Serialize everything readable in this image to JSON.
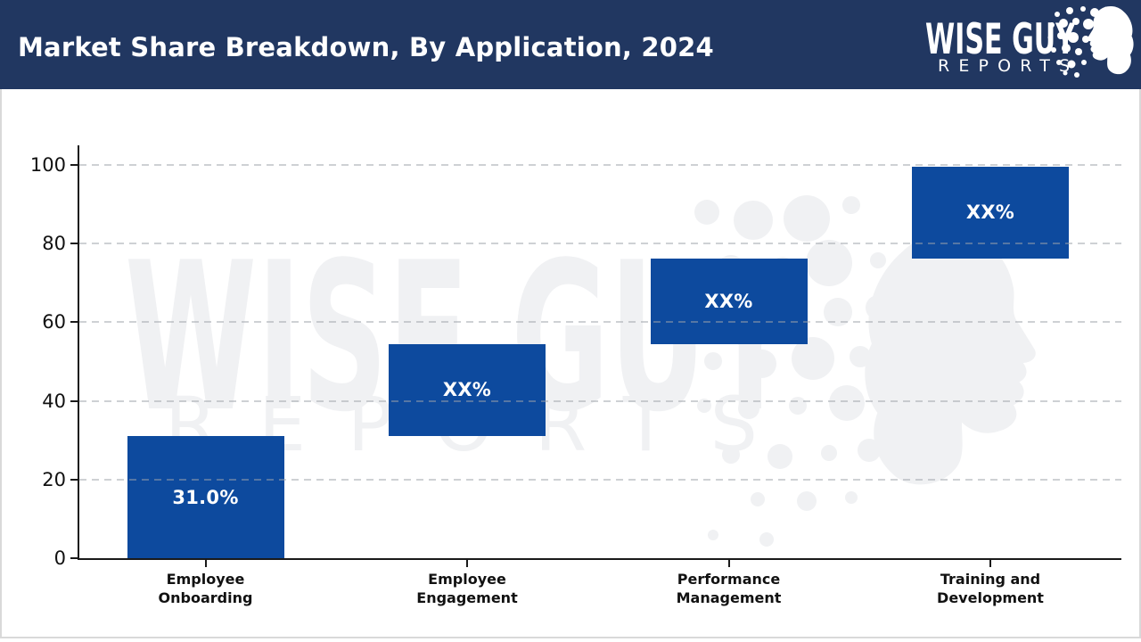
{
  "header": {
    "title": "Market Share Breakdown, By Application, 2024",
    "logo": {
      "brand_line1": "WISE GUY",
      "brand_line2": "REPORTS"
    }
  },
  "watermark": {
    "line1": "WISE GUY",
    "line2": "REPORTS"
  },
  "colors": {
    "header_bg": "#213761",
    "bar": "#0d4a9e",
    "bar_label": "#ffffff",
    "grid": "#d9d9d9",
    "watermark": "#f0f1f3"
  },
  "chart_data": {
    "type": "bar",
    "variant": "waterfall",
    "title": "Market Share Breakdown, By Application, 2024",
    "categories": [
      "Employee Onboarding",
      "Employee Engagement",
      "Performance Management",
      "Training and Development"
    ],
    "categories_lines": [
      [
        "Employee",
        "Onboarding"
      ],
      [
        "Employee",
        "Engagement"
      ],
      [
        "Performance",
        "Management"
      ],
      [
        "Training and",
        "Development"
      ]
    ],
    "bar_labels": [
      "31.0%",
      "XX%",
      "XX%",
      "XX%"
    ],
    "segments": [
      {
        "start": 0.0,
        "end": 31.0
      },
      {
        "start": 31.0,
        "end": 54.5
      },
      {
        "start": 54.5,
        "end": 76.2
      },
      {
        "start": 76.2,
        "end": 99.6
      }
    ],
    "xlabel": "",
    "ylabel": "",
    "ylim": [
      0,
      105
    ],
    "yticks": [
      0,
      20,
      40,
      60,
      80,
      100
    ],
    "grid": "horizontal-dashed",
    "legend": "none"
  }
}
